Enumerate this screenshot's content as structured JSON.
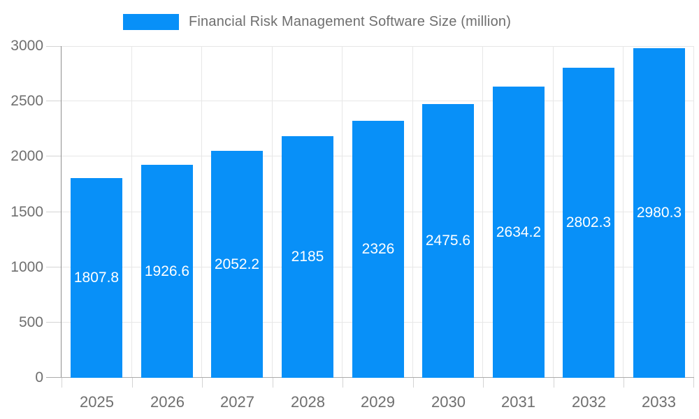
{
  "legend": {
    "label": "Financial Risk Management Software Size (million)"
  },
  "colors": {
    "bar": "#0890F8",
    "grid": "#E7E7E7",
    "axis_y": "#8F8F8F",
    "axis_x": "#ABABAB",
    "tick": "#D4D4D4",
    "axis_text": "#6F6F6F",
    "legend_text": "#6E6E6E",
    "value_text": "#FFFFFF",
    "background": "#FFFFFF"
  },
  "chart_data": {
    "type": "bar",
    "title": "Financial Risk Management Software Size (million)",
    "categories": [
      "2025",
      "2026",
      "2027",
      "2028",
      "2029",
      "2030",
      "2031",
      "2032",
      "2033"
    ],
    "series": [
      {
        "name": "Financial Risk Management Software Size (million)",
        "values": [
          1807.8,
          1926.6,
          2052.2,
          2185,
          2326,
          2475.6,
          2634.2,
          2802.3,
          2980.3
        ],
        "labels": [
          "1807.8",
          "1926.6",
          "2052.2",
          "2185",
          "2326",
          "2475.6",
          "2634.2",
          "2802.3",
          "2980.3"
        ]
      }
    ],
    "xlabel": "",
    "ylabel": "",
    "ylim": [
      0,
      3000
    ],
    "yticks": [
      0,
      500,
      1000,
      1500,
      2000,
      2500,
      3000
    ],
    "ytick_labels": [
      "0",
      "500",
      "1000",
      "1500",
      "2000",
      "2500",
      "3000"
    ],
    "grid": true,
    "legend_position": "top",
    "value_labels_position": "inside-center"
  }
}
